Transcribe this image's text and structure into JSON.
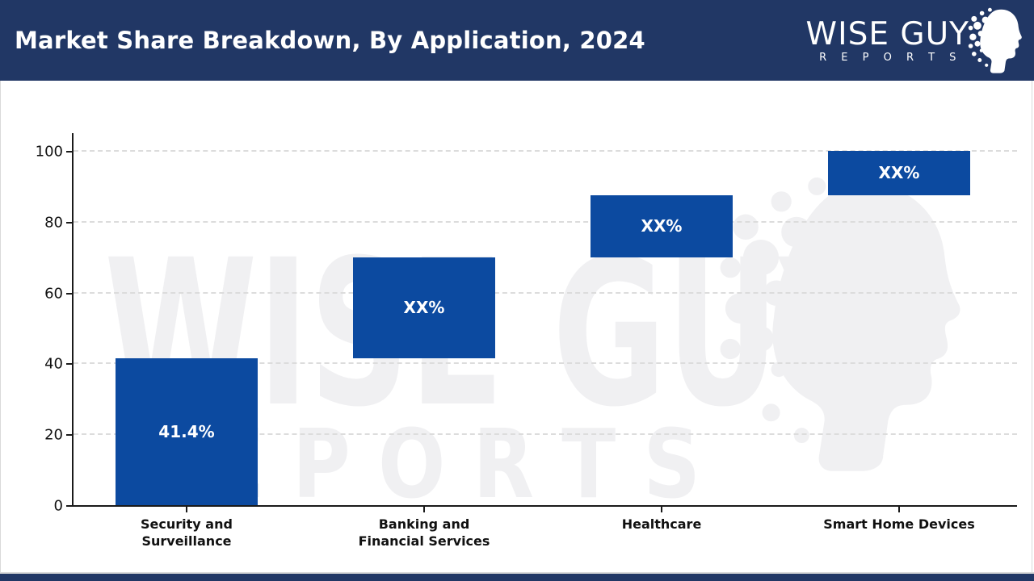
{
  "header": {
    "title": "Market Share Breakdown, By Application, 2024",
    "brand": {
      "line1": "WISE GUY",
      "line2": "R E P O R T S"
    }
  },
  "watermark": {
    "line1": "WISE GUY",
    "line2": "R E P O R T S"
  },
  "colors": {
    "header_bg": "#213765",
    "bar": "#0c4aa0",
    "grid": "#dcdcdc",
    "axis": "#1a1a1a",
    "watermark": "#f0f0f2",
    "bar_label_text": "#ffffff"
  },
  "chart_data": {
    "type": "bar",
    "subtype": "floating-waterfall",
    "title": "Market Share Breakdown, By Application, 2024",
    "categories": [
      "Security and Surveillance",
      "Banking and Financial Services",
      "Healthcare",
      "Smart Home Devices"
    ],
    "category_lines": [
      [
        "Security and",
        "Surveillance"
      ],
      [
        "Banking and",
        "Financial Services"
      ],
      [
        "Healthcare"
      ],
      [
        "Smart Home Devices"
      ]
    ],
    "segments": [
      {
        "category": "Security and Surveillance",
        "start": 0,
        "end": 41.4,
        "label": "41.4%"
      },
      {
        "category": "Banking and Financial Services",
        "start": 41.4,
        "end": 70,
        "label": "XX%"
      },
      {
        "category": "Healthcare",
        "start": 70,
        "end": 87.5,
        "label": "XX%"
      },
      {
        "category": "Smart Home Devices",
        "start": 87.5,
        "end": 100,
        "label": "XX%"
      }
    ],
    "xlabel": "",
    "ylabel": "",
    "ylim": [
      0,
      100
    ],
    "yticks": [
      0,
      20,
      40,
      60,
      80,
      100
    ],
    "grid": true,
    "grid_style": "dashed-horizontal",
    "legend": "none"
  }
}
